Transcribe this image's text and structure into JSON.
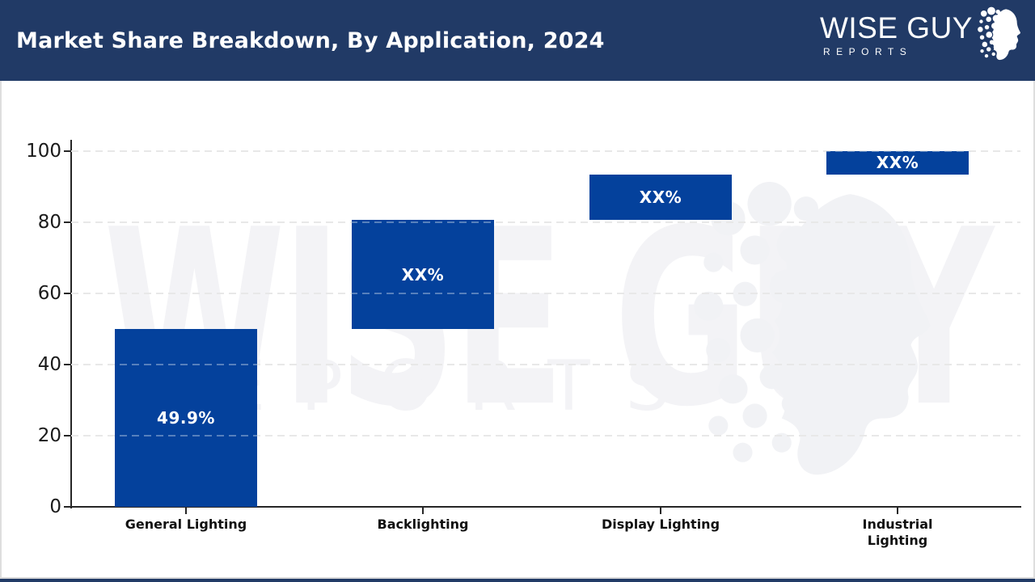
{
  "header": {
    "title": "Market Share Breakdown, By Application, 2024",
    "logo": {
      "wordmark": "WISE GUY",
      "sub": "REPORTS"
    }
  },
  "watermark": {
    "wordmark": "WISE GUY",
    "sub": "REPORTS"
  },
  "chart_data": {
    "type": "bar",
    "subtype": "waterfall",
    "title": "Market Share Breakdown, By Application, 2024",
    "categories": [
      "General Lighting",
      "Backlighting",
      "Display Lighting",
      "Industrial\nLighting"
    ],
    "segments": [
      {
        "category": "General Lighting",
        "start": 0,
        "end": 49.9,
        "label": "49.9%"
      },
      {
        "category": "Backlighting",
        "start": 49.9,
        "end": 80.6,
        "label": "XX%"
      },
      {
        "category": "Display Lighting",
        "start": 80.6,
        "end": 93.5,
        "label": "XX%"
      },
      {
        "category": "Industrial Lighting",
        "start": 93.5,
        "end": 100,
        "label": "XX%"
      }
    ],
    "xlabel": "",
    "ylabel": "",
    "ylim": [
      0,
      100
    ],
    "yticks": [
      0,
      20,
      40,
      60,
      80,
      100
    ],
    "grid": "horizontal-dashed",
    "legend": "none",
    "bar_color": "#04419C",
    "bar_label_color": "#FFFFFF"
  },
  "colors": {
    "header_bg": "#213A66",
    "bar_blue": "#04419C",
    "grid_gray": "#DCDCDC",
    "axis_dark": "#262626",
    "watermark_gray": "#F3F3F6",
    "footer_navy": "#213A66"
  }
}
